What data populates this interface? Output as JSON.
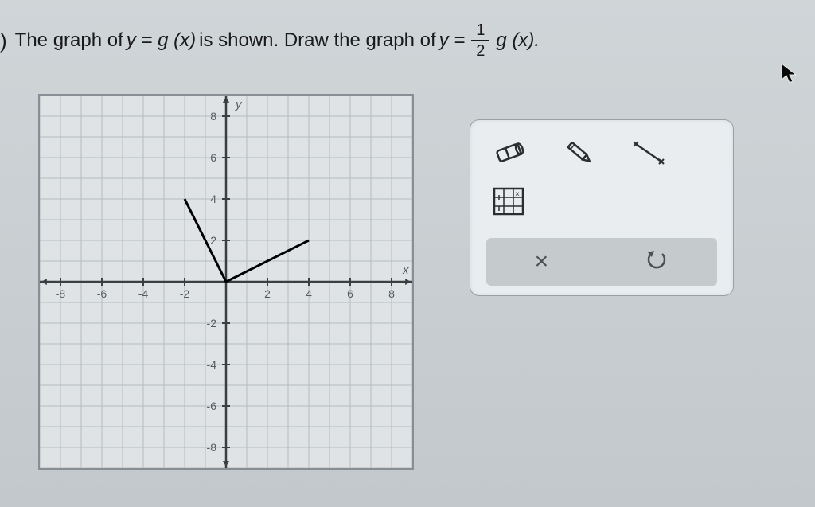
{
  "question": {
    "prefix_paren": ")",
    "part1": "The graph of ",
    "eq1": "y = g (x)",
    "part2": " is shown. Draw the graph of ",
    "eq2_lhs": "y = ",
    "frac_num": "1",
    "frac_den": "2",
    "eq2_rhs": "g (x).",
    "text_color": "#1a1a1a",
    "font_size": 24
  },
  "graph": {
    "background_color": "#dfe3e6",
    "grid_color": "#b5bbbf",
    "axis_color": "#3a3f42",
    "tick_label_color": "#555b5f",
    "plot_line_color": "#000000",
    "plot_line_width": 3,
    "range": [
      -9,
      9
    ],
    "tick_step": 2,
    "x_ticks": [
      -8,
      -6,
      -4,
      -2,
      2,
      4,
      6,
      8
    ],
    "y_ticks": [
      -8,
      -6,
      -4,
      -2,
      2,
      4,
      6,
      8
    ],
    "x_label": "x",
    "y_label": "y",
    "g_points": [
      [
        -2,
        4
      ],
      [
        0,
        0
      ],
      [
        4,
        2
      ]
    ]
  },
  "tools": {
    "eraser": "eraser-icon",
    "pencil": "pencil-icon",
    "line": "line-icon",
    "grid": "grid-icon",
    "clear_label": "×",
    "undo_label": "undo-icon",
    "panel_bg": "#e9edef",
    "panel_border": "#9aa1a6",
    "bottom_bg": "#c5cacc",
    "icon_stroke": "#2a2e31"
  },
  "cursor": {
    "fill": "#080808",
    "stroke": "#f0f0f0"
  }
}
